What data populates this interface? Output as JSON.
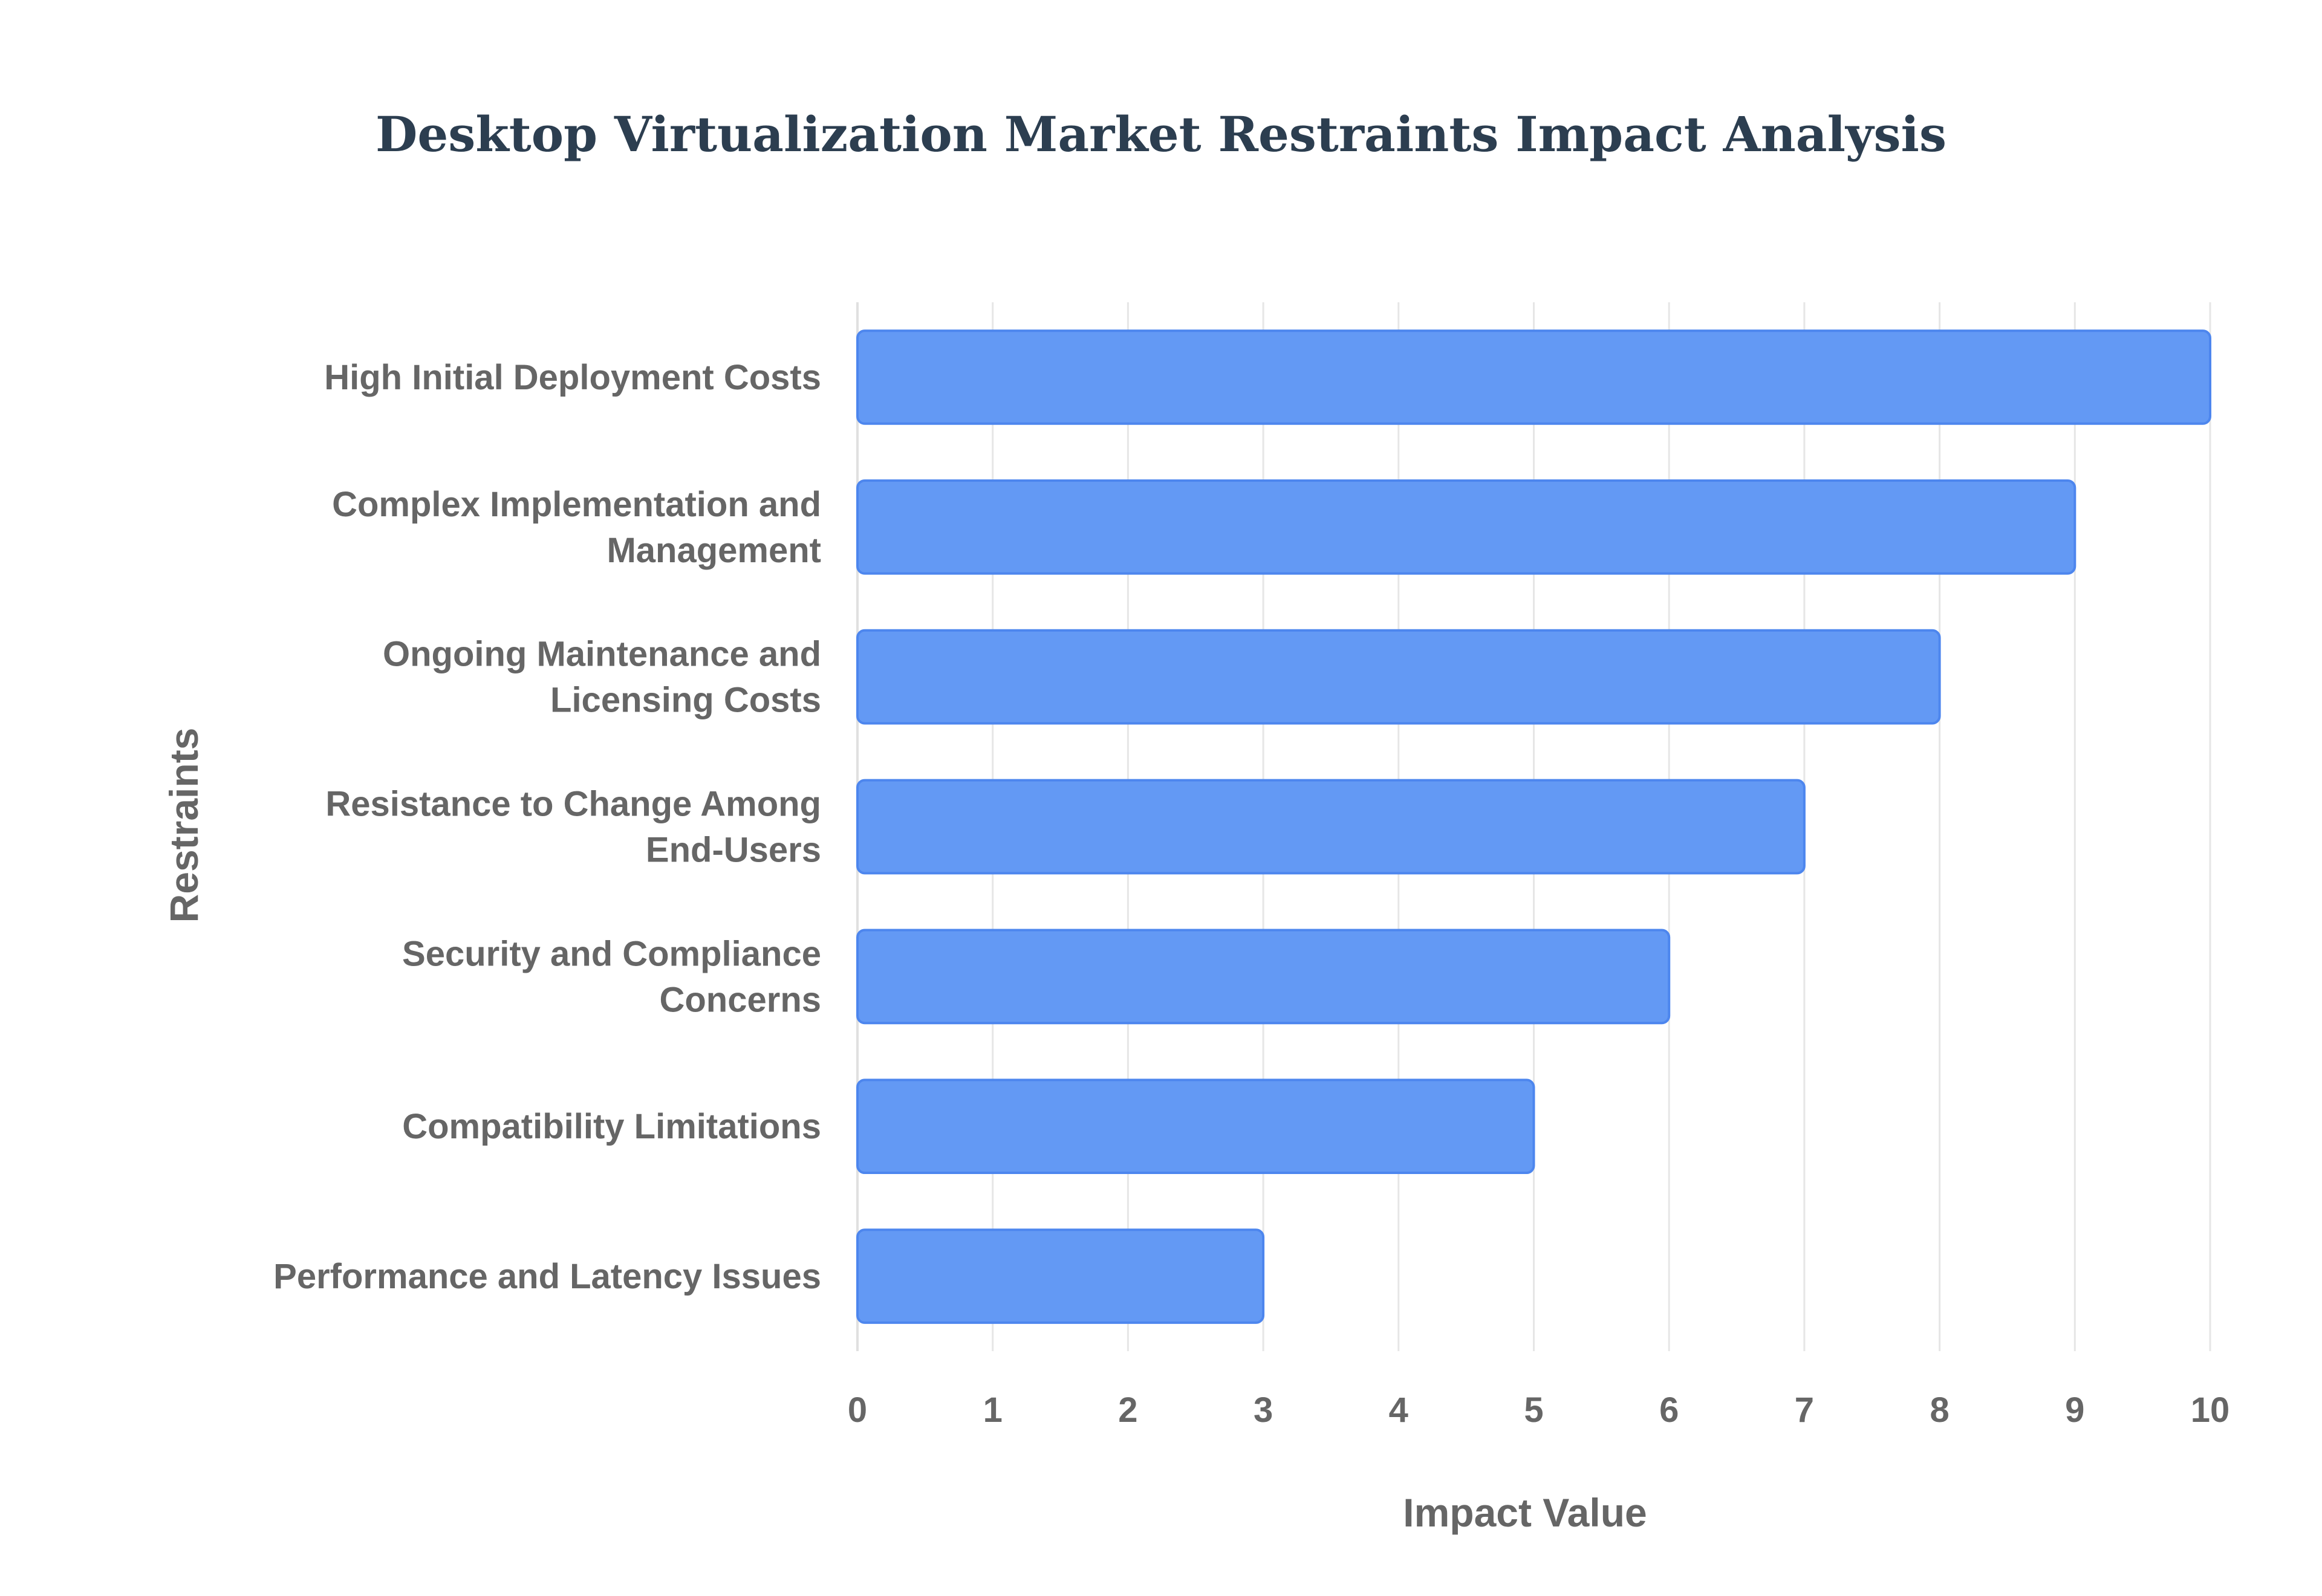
{
  "chart_data": {
    "type": "bar",
    "orientation": "horizontal",
    "title": "Desktop Virtualization Market Restraints Impact Analysis",
    "xlabel": "Impact Value",
    "ylabel": "Restraints",
    "xlim": [
      0,
      10
    ],
    "xticks": [
      0,
      1,
      2,
      3,
      4,
      5,
      6,
      7,
      8,
      9,
      10
    ],
    "grid": true,
    "bar_color": "#6399f4",
    "bar_edge_color": "#4d86ee",
    "categories": [
      [
        "High Initial Deployment Costs"
      ],
      [
        "Complex Implementation and",
        "Management"
      ],
      [
        "Ongoing Maintenance and",
        "Licensing Costs"
      ],
      [
        "Resistance to Change Among",
        "End-Users"
      ],
      [
        "Security and Compliance",
        "Concerns"
      ],
      [
        "Compatibility Limitations"
      ],
      [
        "Performance and Latency Issues"
      ]
    ],
    "values": [
      10,
      9,
      8,
      7,
      6,
      5,
      3
    ]
  }
}
